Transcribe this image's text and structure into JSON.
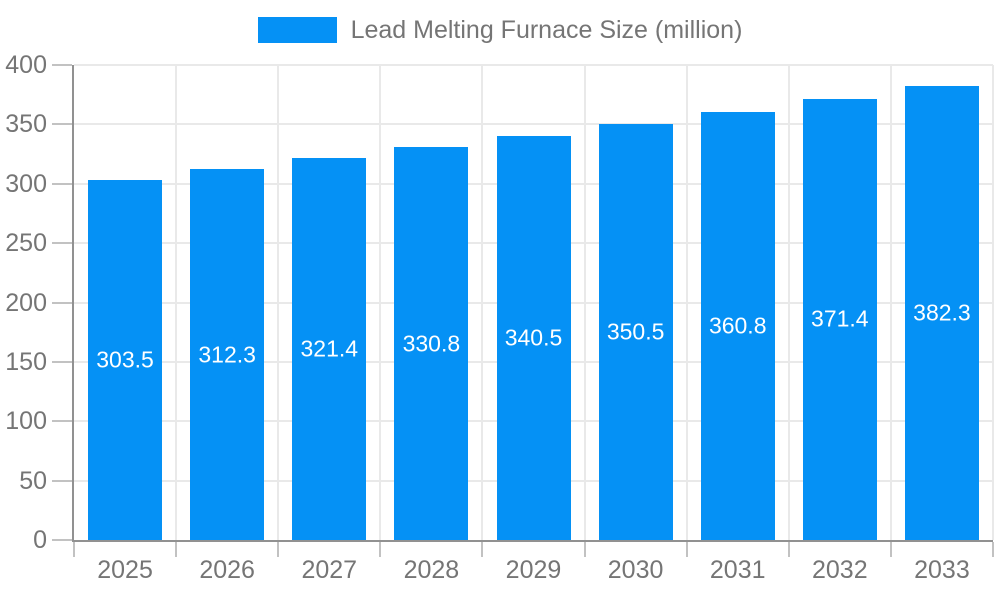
{
  "chart_data": {
    "type": "bar",
    "title": "Lead Melting Furnace Size (million)",
    "legend_entries": [
      "Lead Melting Furnace Size (million)"
    ],
    "legend_position": "top-center",
    "categories": [
      "2025",
      "2026",
      "2027",
      "2028",
      "2029",
      "2030",
      "2031",
      "2032",
      "2033"
    ],
    "values": [
      303.5,
      312.3,
      321.4,
      330.8,
      340.5,
      350.5,
      360.8,
      371.4,
      382.3
    ],
    "data_labels": [
      "303.5",
      "312.3",
      "321.4",
      "330.8",
      "340.5",
      "350.5",
      "360.8",
      "371.4",
      "382.3"
    ],
    "data_label_position": "inside-center",
    "xlabel": "",
    "ylabel": "",
    "ylim": [
      0,
      400
    ],
    "ytick_step": 50,
    "yticks": [
      0,
      50,
      100,
      150,
      200,
      250,
      300,
      350,
      400
    ],
    "grid": true,
    "colors": {
      "bar": "#0591f5",
      "label_text": "#ffffff",
      "axis_text": "#757575",
      "axis_line": "#919191",
      "grid_line": "#e9e9e9",
      "tick_line": "#c2c2c2",
      "background": "#ffffff"
    }
  }
}
